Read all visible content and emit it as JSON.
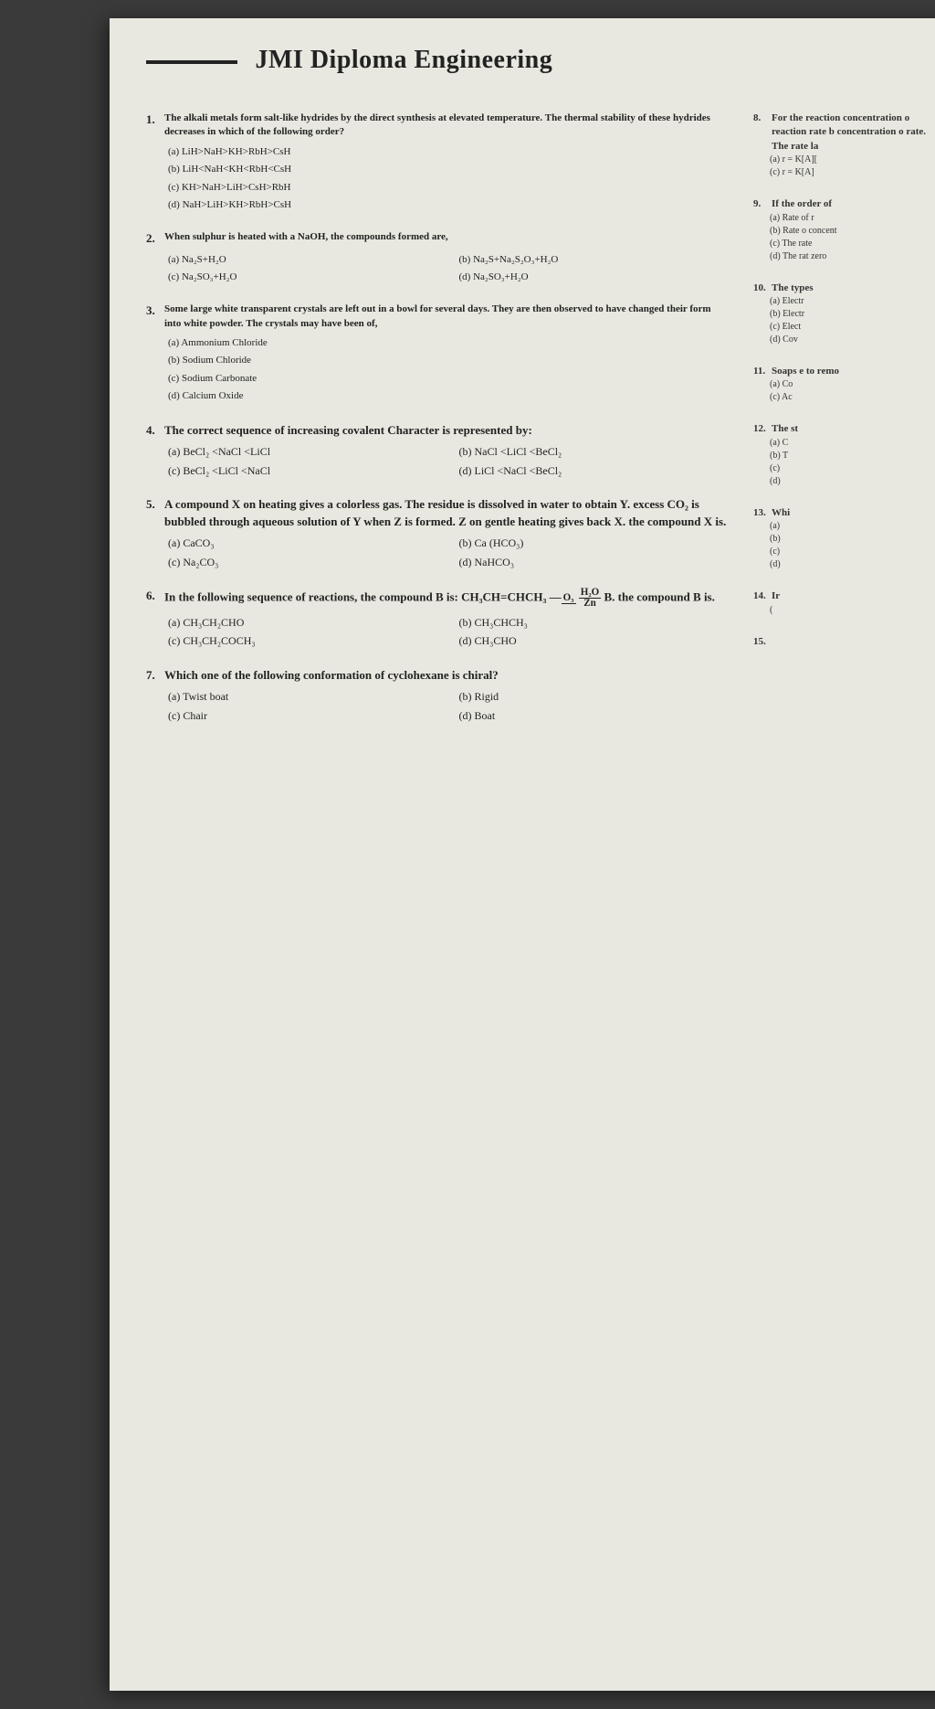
{
  "header": "JMI Diploma Engineering",
  "questions": [
    {
      "num": "1.",
      "text": "The alkali metals form salt-like hydrides by the direct synthesis at elevated temperature. The thermal stability of these hydrides decreases in which of the following order?",
      "opts": [
        "(a) LiH>NaH>KH>RbH>CsH",
        "(b) LiH<NaH<KH<RbH<CsH",
        "(c) KH>NaH>LiH>CsH>RbH",
        "(d) NaH>LiH>KH>RbH>CsH"
      ],
      "layout": "one-col",
      "small": true
    },
    {
      "num": "2.",
      "text": "When sulphur is heated with a NaOH, the compounds formed are,",
      "opts": [
        "(a) Na₂S+H₂O",
        "(b) Na₂S+Na₂S₂O₃+H₂O",
        "(c) Na₂SO₃+H₂O",
        "(d) Na₂SO₃+H₂O"
      ],
      "layout": "two-col",
      "small": true
    },
    {
      "num": "3.",
      "text": "Some large white transparent crystals are left out in a bowl for several days. They are then observed to have changed their form into white powder. The crystals may have been of,",
      "opts": [
        "(a) Ammonium Chloride",
        "(b) Sodium Chloride",
        "(c) Sodium Carbonate",
        "(d) Calcium Oxide"
      ],
      "layout": "one-col",
      "small": true
    },
    {
      "num": "4.",
      "text": "The correct sequence of increasing covalent Character is represented by:",
      "opts": [
        "(a) BeCl₂ <NaCl <LiCl",
        "(b) NaCl <LiCl <BeCl₂",
        "(c) BeCl₂ <LiCl <NaCl",
        "(d) LiCl <NaCl <BeCl₂"
      ],
      "layout": "two-col"
    },
    {
      "num": "5.",
      "text": "A compound X on heating gives a colorless gas. The residue is dissolved in water to obtain Y. excess CO₂ is bubbled through aqueous solution of Y when Z is formed. Z on gentle heating gives back X. the compound X is.",
      "opts": [
        "(a) CaCO₃",
        "(b) Ca (HCO₃)",
        "(c) Na₂CO₃",
        "(d) NaHCO₃"
      ],
      "layout": "two-col"
    },
    {
      "num": "6.",
      "text_html": "In the following sequence of reactions, the compound B is: CH₃CH=CHCH₃ —<span class='frac'><span class='top'>O₃</span><span class='bot'></span></span> <span class='frac'><span class='top'>H₂O</span><span class='bot'>Zn</span></span>  B. the compound B is.",
      "opts": [
        "(a) CH₃CH₂CHO",
        "(b) CH₃CHCH₃",
        "(c) CH₃CH₂COCH₃",
        "(d) CH₃CHO"
      ],
      "layout": "two-col"
    },
    {
      "num": "7.",
      "text": "Which one of the following conformation of cyclohexane is chiral?",
      "opts": [
        "(a) Twist boat",
        "(b) Rigid",
        "(c) Chair",
        "(d) Boat"
      ],
      "layout": "two-col"
    }
  ],
  "right": [
    {
      "num": "8.",
      "text": "For the reaction concentration o reaction rate b concentration o rate. The rate la",
      "opts": [
        "(a) r = K[A][",
        "(c) r = K[A]"
      ]
    },
    {
      "num": "9.",
      "text": "If the order of",
      "opts": [
        "(a) Rate of r",
        "(b) Rate o concent",
        "(c) The rate",
        "(d) The rat zero"
      ]
    },
    {
      "num": "10.",
      "text": "The types",
      "opts": [
        "(a) Electr",
        "(b) Electr",
        "(c) Elect",
        "(d) Cov"
      ]
    },
    {
      "num": "11.",
      "text": "Soaps e to remo",
      "opts": [
        "(a) Co",
        "(c) Ac"
      ]
    },
    {
      "num": "12.",
      "text": "The st",
      "opts": [
        "(a) C",
        "(b) T",
        "(c) ",
        "(d) "
      ]
    },
    {
      "num": "13.",
      "text": "Whi",
      "opts": [
        "(a)",
        "(b)",
        "(c)",
        "(d)"
      ]
    },
    {
      "num": "14.",
      "text": "Ir",
      "opts": [
        "("
      ]
    },
    {
      "num": "15.",
      "text": "",
      "opts": []
    }
  ]
}
